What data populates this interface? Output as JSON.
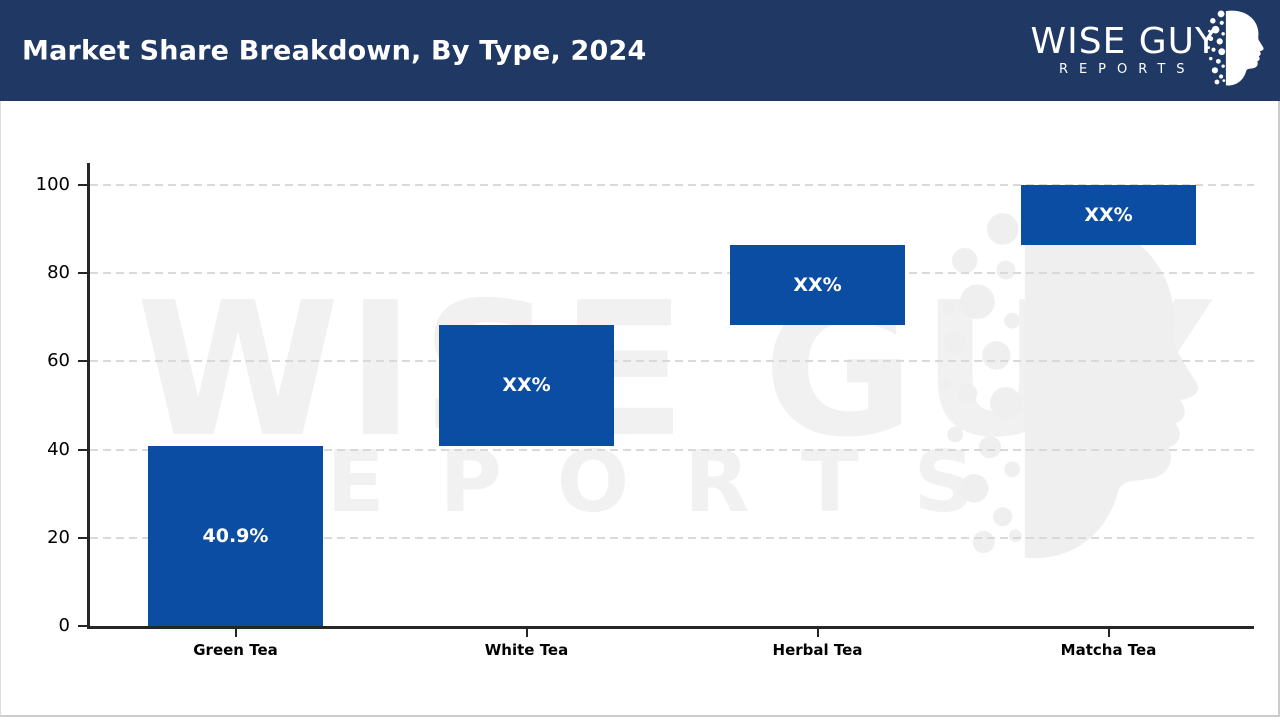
{
  "header": {
    "title": "Market Share Breakdown, By Type, 2024",
    "logo": {
      "line1": "WISE GUY",
      "line2": "REPORTS"
    }
  },
  "watermark": {
    "line1": "WISE GUY",
    "line2": "REPORTS"
  },
  "colors": {
    "header_background": "#1f3864",
    "bar_blue": "#0b4da2",
    "axis": "#262626",
    "gridline": "#d9d9d9",
    "watermark_gray": "#f1f1f1",
    "label_white": "#ffffff",
    "text_black": "#000000"
  },
  "chart_data": {
    "type": "bar",
    "subtype": "waterfall",
    "title": "",
    "xlabel": "",
    "ylabel": "",
    "categories": [
      "Green Tea",
      "White Tea",
      "Herbal Tea",
      "Matcha Tea"
    ],
    "segments": [
      {
        "category": "Green Tea",
        "start": 0,
        "end": 40.9,
        "label": "40.9%"
      },
      {
        "category": "White Tea",
        "start": 40.9,
        "end": 68.2,
        "label": "XX%"
      },
      {
        "category": "Herbal Tea",
        "start": 68.2,
        "end": 86.4,
        "label": "XX%"
      },
      {
        "category": "Matcha Tea",
        "start": 86.4,
        "end": 100,
        "label": "XX%"
      }
    ],
    "total": 100,
    "yticks": [
      0,
      20,
      40,
      60,
      80,
      100
    ],
    "ylim": [
      0,
      105
    ],
    "grid": "horizontal-dashed",
    "legend": "none",
    "bar_color": "#0b4da2",
    "bar_width_pct": 15.1
  }
}
